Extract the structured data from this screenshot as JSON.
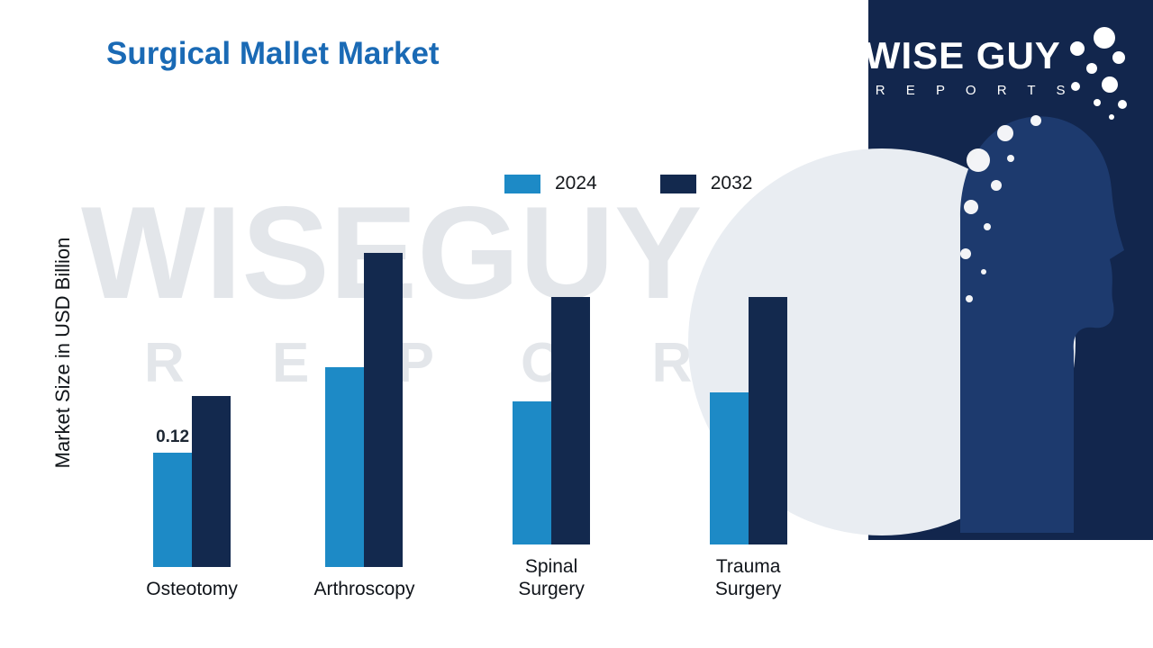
{
  "brand": {
    "name": "WISE GUY",
    "sub": "R E P O R T S"
  },
  "watermark": {
    "line1": "WISEGUY",
    "line2": "R E P O R T S"
  },
  "colors": {
    "title": "#1a6ab5",
    "panel": "#12264d",
    "panel_head": "#1d3a6e",
    "watermark": "#9aa7b5",
    "series_2024": "#1d8ac6",
    "series_2032": "#13294e"
  },
  "chart_data": {
    "type": "bar",
    "title": "Surgical Mallet Market",
    "xlabel": "",
    "ylabel": "Market Size in USD Billion",
    "categories": [
      "Osteotomy",
      "Arthroscopy",
      "Spinal Surgery",
      "Trauma Surgery"
    ],
    "series": [
      {
        "name": "2024",
        "color": "#1d8ac6",
        "values": [
          0.12,
          0.21,
          0.15,
          0.16
        ]
      },
      {
        "name": "2032",
        "color": "#13294e",
        "values": [
          0.18,
          0.33,
          0.26,
          0.26
        ]
      }
    ],
    "annotations": [
      {
        "series": 0,
        "category": 0,
        "text": "0.12"
      }
    ],
    "ylim": [
      0,
      0.35
    ],
    "grid": false,
    "legend_position": "top"
  }
}
